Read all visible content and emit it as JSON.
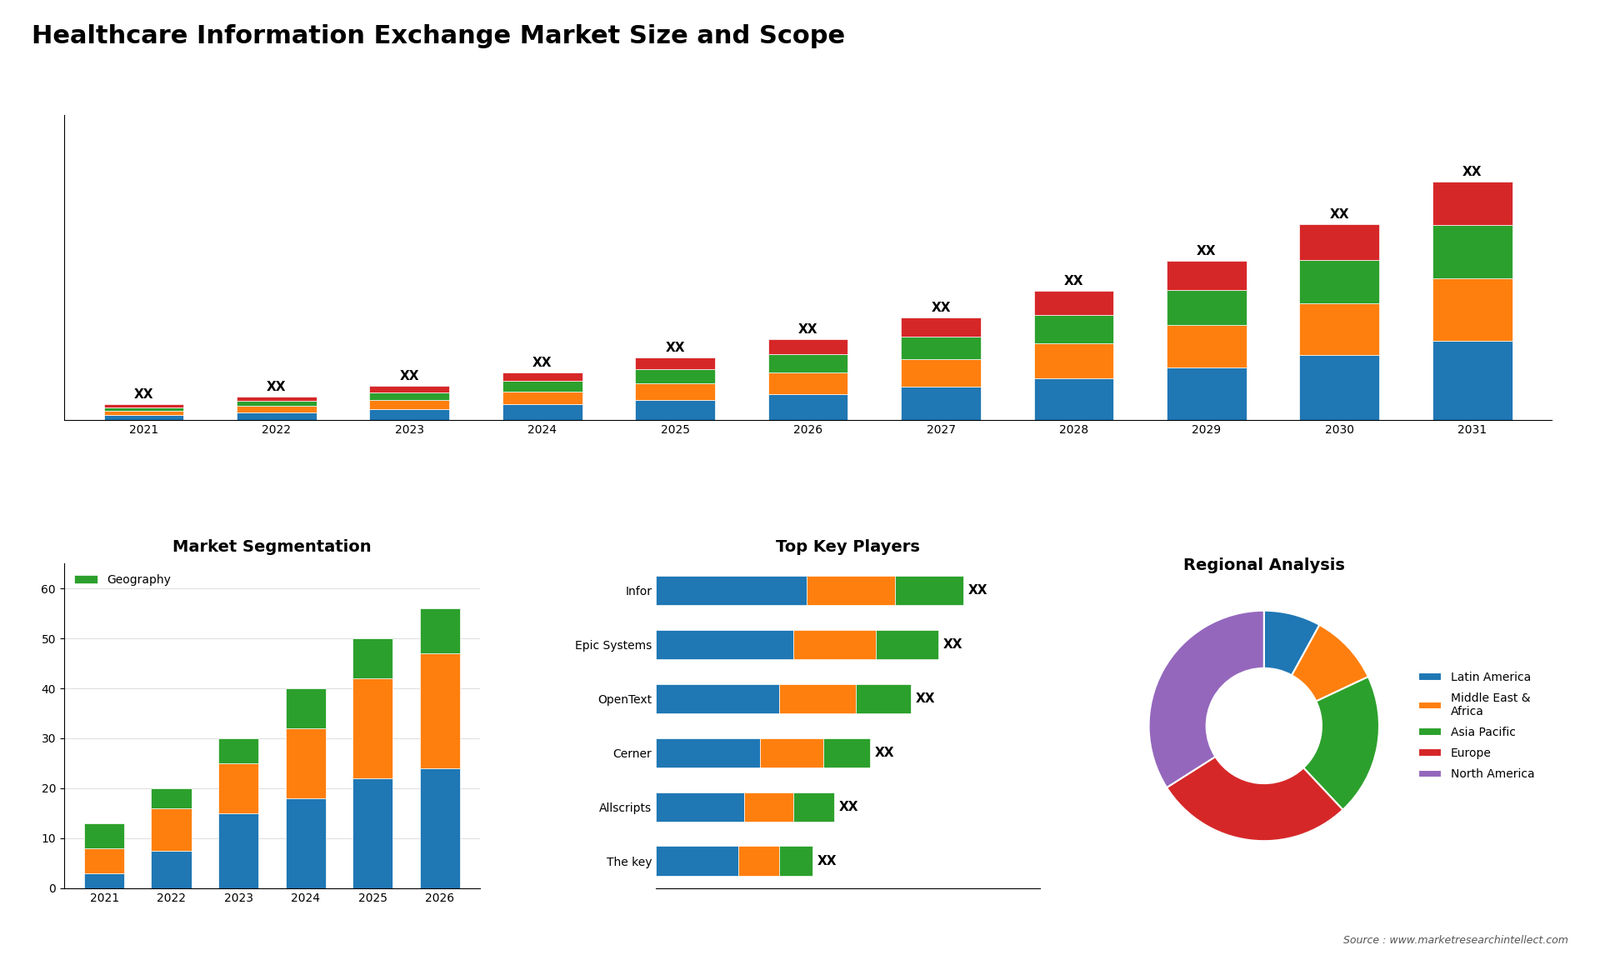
{
  "title": "Healthcare Information Exchange Market Size and Scope",
  "annotations": [
    "Source : www.marketresearchintellect.com"
  ],
  "chart_data": [
    {
      "type": "bar",
      "stacked": true,
      "grid": false,
      "tick_labels": "x",
      "categories": [
        "2021",
        "2022",
        "2023",
        "2024",
        "2025",
        "2026",
        "2027",
        "2028",
        "2029",
        "2030",
        "2031"
      ],
      "series": [
        {
          "values": [
            1.5,
            2.2,
            3.2,
            4.5,
            5.8,
            7.5,
            9.5,
            12.0,
            15.0,
            18.5,
            22.5
          ]
        },
        {
          "values": [
            1.2,
            1.8,
            2.6,
            3.6,
            4.8,
            6.0,
            7.8,
            9.8,
            12.0,
            14.8,
            18.0
          ]
        },
        {
          "values": [
            1.0,
            1.5,
            2.1,
            3.0,
            4.0,
            5.2,
            6.5,
            8.2,
            10.0,
            12.3,
            15.0
          ]
        },
        {
          "values": [
            0.8,
            1.2,
            1.8,
            2.5,
            3.3,
            4.3,
            5.4,
            6.8,
            8.3,
            10.2,
            12.5
          ]
        }
      ],
      "ylim": [
        0,
        87.04
      ],
      "annotations": [
        "XX",
        "XX",
        "XX",
        "XX",
        "XX",
        "XX",
        "XX",
        "XX",
        "XX",
        "XX",
        "XX"
      ]
    },
    {
      "type": "bar",
      "stacked": true,
      "grid": true,
      "title": "Market Segmentation",
      "categories": [
        "2021",
        "2022",
        "2023",
        "2024",
        "2025",
        "2026"
      ],
      "series": [
        {
          "values": [
            3.0,
            7.5,
            15.0,
            18.0,
            22.0,
            24.0
          ]
        },
        {
          "values": [
            5.0,
            8.5,
            10.0,
            14.0,
            20.0,
            23.0
          ]
        },
        {
          "name": "Geography",
          "values": [
            5.0,
            4.0,
            5.0,
            8.0,
            8.0,
            9.0
          ]
        }
      ],
      "ylim": [
        0,
        65
      ],
      "yticks": [
        0,
        10,
        20,
        30,
        40,
        50,
        60
      ],
      "legend": "upper left"
    },
    {
      "type": "bar",
      "stacked": true,
      "orientation": "horizontal",
      "grid": false,
      "tick_labels": "y",
      "title": "Top Key Players",
      "categories": [
        "Infor",
        "Epic Systems",
        "OpenText",
        "Cerner",
        "Allscripts",
        "The key"
      ],
      "series": [
        {
          "values": [
            5.5,
            5.0,
            4.5,
            3.8,
            3.2,
            3.0
          ]
        },
        {
          "values": [
            3.2,
            3.0,
            2.8,
            2.3,
            1.8,
            1.5
          ]
        },
        {
          "values": [
            2.5,
            2.3,
            2.0,
            1.7,
            1.5,
            1.2
          ]
        }
      ],
      "xlim": [
        0,
        14.0
      ],
      "annotations": [
        "XX",
        "XX",
        "XX",
        "XX",
        "XX",
        "XX"
      ]
    },
    {
      "type": "donut",
      "title": "Regional Analysis",
      "categories": [
        "Latin America",
        "Middle East &\nAfrica",
        "Asia Pacific",
        "Europe",
        "North America"
      ],
      "values": [
        8,
        10,
        20,
        28,
        34
      ],
      "legend": "right"
    }
  ]
}
